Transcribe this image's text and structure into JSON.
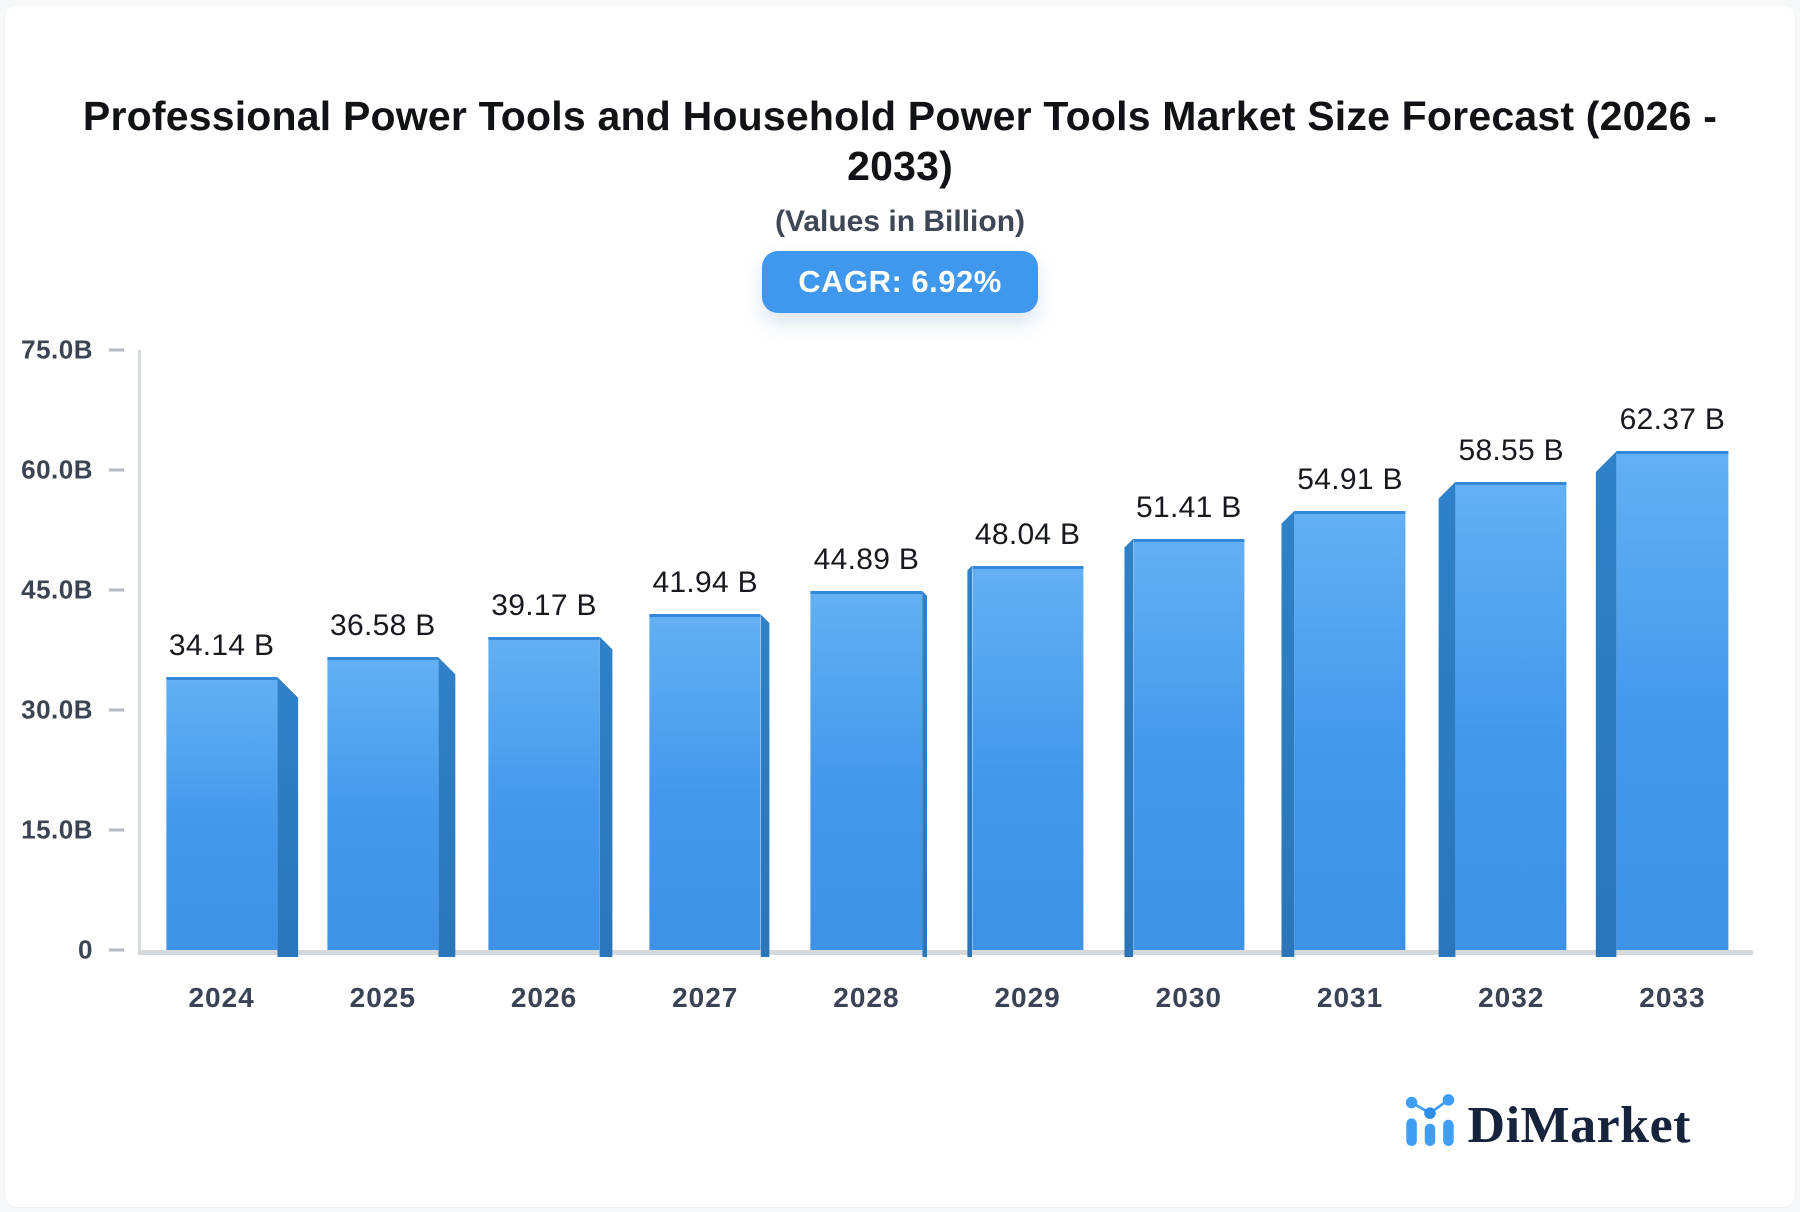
{
  "header": {
    "title": "Professional Power Tools and Household Power Tools Market Size Forecast (2026 - 2033)",
    "subtitle": "(Values in Billion)",
    "cagr_badge": "CAGR: 6.92%"
  },
  "chart_data": {
    "type": "bar",
    "title": "Professional Power Tools and Household Power Tools Market Size Forecast (2026 - 2033)",
    "subtitle": "(Values in Billion)",
    "annotation": "CAGR: 6.92%",
    "categories": [
      "2024",
      "2025",
      "2026",
      "2027",
      "2028",
      "2029",
      "2030",
      "2031",
      "2032",
      "2033"
    ],
    "values": [
      34.14,
      36.58,
      39.17,
      41.94,
      44.89,
      48.04,
      51.41,
      54.91,
      58.55,
      62.37
    ],
    "value_labels": [
      "34.14 B",
      "36.58 B",
      "39.17 B",
      "41.94 B",
      "44.89 B",
      "48.04 B",
      "51.41 B",
      "54.91 B",
      "58.55 B",
      "62.37 B"
    ],
    "unit": "Billion",
    "ylim": [
      0,
      75
    ],
    "ytick_values": [
      75,
      60,
      45,
      30,
      15,
      0
    ],
    "ytick_labels": [
      "75.0B",
      "60.0B",
      "45.0B",
      "30.0B",
      "15.0B",
      "0"
    ],
    "grid": "off",
    "legend": "none",
    "colors": {
      "bar_face_top": "#63b0f3",
      "bar_face_bottom": "#3d92e7",
      "bar_side": "#2d7cc2",
      "bar_top_edge": "#3389d7",
      "badge_bg": "#4097ee",
      "axis_gray": "#d9dcdf",
      "label_dark": "#17191f"
    }
  },
  "footer": {
    "logo_text": "DiMarket",
    "logo_icon": "mini-bar-chart-icon",
    "logo_blue": "#3f9ef3"
  }
}
